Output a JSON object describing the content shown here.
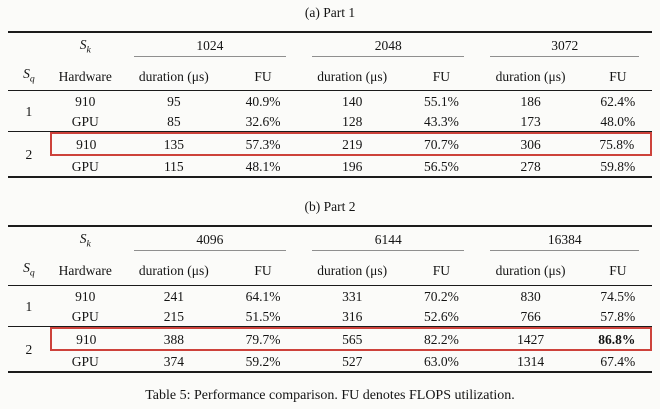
{
  "table": {
    "caption": "Table 5: Performance comparison. FU denotes FLOPS utilization.",
    "headers": {
      "sq_base": "S",
      "sq_sub": "q",
      "sk_base": "S",
      "sk_sub": "k",
      "hardware": "Hardware",
      "duration": "duration (μs)",
      "fu": "FU"
    },
    "colors": {
      "highlight_border": "#cd423b",
      "rule": "#1b1b1b"
    },
    "parts": [
      {
        "label": "(a) Part 1",
        "sk": [
          "1024",
          "2048",
          "3072"
        ],
        "groups": [
          {
            "sq": "1",
            "rows": [
              {
                "hw": "910",
                "highlighted": false,
                "c": [
                  "95",
                  "40.9%",
                  "140",
                  "55.1%",
                  "186",
                  "62.4%"
                ]
              },
              {
                "hw": "GPU",
                "highlighted": false,
                "c": [
                  "85",
                  "32.6%",
                  "128",
                  "43.3%",
                  "173",
                  "48.0%"
                ]
              }
            ]
          },
          {
            "sq": "2",
            "rows": [
              {
                "hw": "910",
                "highlighted": true,
                "c": [
                  "135",
                  "57.3%",
                  "219",
                  "70.7%",
                  "306",
                  "75.8%"
                ]
              },
              {
                "hw": "GPU",
                "highlighted": false,
                "c": [
                  "115",
                  "48.1%",
                  "196",
                  "56.5%",
                  "278",
                  "59.8%"
                ]
              }
            ]
          }
        ]
      },
      {
        "label": "(b) Part 2",
        "sk": [
          "4096",
          "6144",
          "16384"
        ],
        "groups": [
          {
            "sq": "1",
            "rows": [
              {
                "hw": "910",
                "highlighted": false,
                "c": [
                  "241",
                  "64.1%",
                  "331",
                  "70.2%",
                  "830",
                  "74.5%"
                ]
              },
              {
                "hw": "GPU",
                "highlighted": false,
                "c": [
                  "215",
                  "51.5%",
                  "316",
                  "52.6%",
                  "766",
                  "57.8%"
                ]
              }
            ]
          },
          {
            "sq": "2",
            "rows": [
              {
                "hw": "910",
                "highlighted": true,
                "bold_cols": [
                  5
                ],
                "c": [
                  "388",
                  "79.7%",
                  "565",
                  "82.2%",
                  "1427",
                  "86.8%"
                ]
              },
              {
                "hw": "GPU",
                "highlighted": false,
                "c": [
                  "374",
                  "59.2%",
                  "527",
                  "63.0%",
                  "1314",
                  "67.4%"
                ]
              }
            ]
          }
        ]
      }
    ]
  }
}
